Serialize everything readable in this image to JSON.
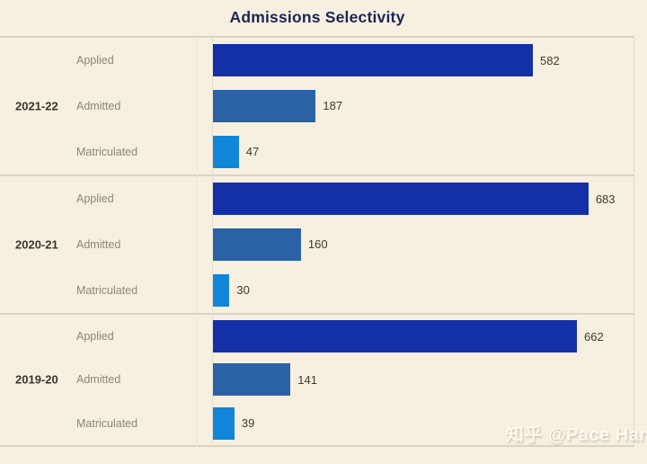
{
  "title": "Admissions Selectivity",
  "watermark": {
    "text": "知乎 @Pace Han"
  },
  "colors": {
    "background": "#f7f0e1",
    "divider": "#d9d3c4",
    "title_text": "#1b2556",
    "year_label_text": "#3a352b",
    "category_label_text": "#8b8679",
    "value_label_text": "#3f3a30",
    "applied_bar": "#1330a8",
    "admitted_bar": "#2a62a5",
    "matriculated_bar": "#1186d8"
  },
  "chart_data": {
    "type": "bar",
    "orientation": "horizontal",
    "title": "Admissions Selectivity",
    "categories": [
      "Applied",
      "Admitted",
      "Matriculated"
    ],
    "series_colors": {
      "Applied": "#1330a8",
      "Admitted": "#2a62a5",
      "Matriculated": "#1186d8"
    },
    "x_max": 765,
    "legend": "none",
    "grid": "group-row-dividers",
    "value_labels": "end-of-bar",
    "groups": [
      {
        "year": "2021-22",
        "values": [
          582,
          187,
          47
        ]
      },
      {
        "year": "2020-21",
        "values": [
          683,
          160,
          30
        ]
      },
      {
        "year": "2019-20",
        "values": [
          662,
          141,
          39
        ]
      }
    ]
  }
}
